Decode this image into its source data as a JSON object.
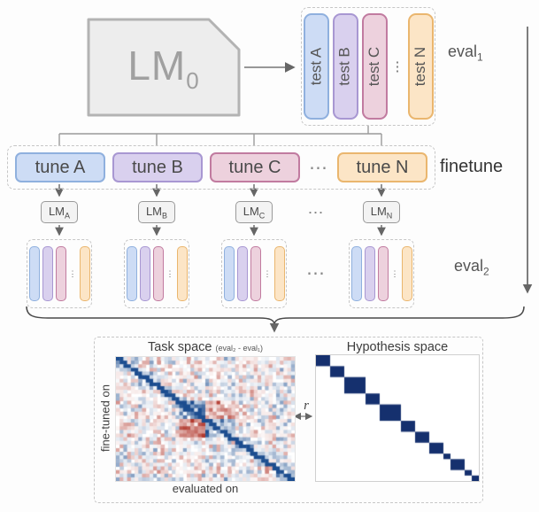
{
  "colors": {
    "blue_fill": "#cddcf5",
    "blue_border": "#8fb0de",
    "purple_fill": "#d9d0ee",
    "purple_border": "#a897d2",
    "pink_fill": "#edd1dd",
    "pink_border": "#c17ba0",
    "orange_fill": "#fce5c6",
    "orange_border": "#eab66e",
    "lm0_fill": "#ededed",
    "lm0_border": "#b3b3b3",
    "heatmap_pos": "#1c4d8f",
    "heatmap_neg": "#b23a2f",
    "hypothesis_block": "#15306e"
  },
  "lm0": {
    "text": "LM",
    "sub": "0"
  },
  "eval1": {
    "label": "eval",
    "sub": "1",
    "ellipsis": "⋮",
    "tests": [
      {
        "label": "test A",
        "color": "blue"
      },
      {
        "label": "test B",
        "color": "purple"
      },
      {
        "label": "test C",
        "color": "pink"
      },
      {
        "label": "test N",
        "color": "orange"
      }
    ]
  },
  "finetune": {
    "label": "finetune",
    "ellipsis": "⋯",
    "tunes": [
      {
        "label": "tune A",
        "color": "blue"
      },
      {
        "label": "tune B",
        "color": "purple"
      },
      {
        "label": "tune C",
        "color": "pink"
      },
      {
        "label": "tune N",
        "color": "orange"
      }
    ]
  },
  "models": {
    "ellipsis": "⋯",
    "items": [
      {
        "text": "LM",
        "sub": "A"
      },
      {
        "text": "LM",
        "sub": "B"
      },
      {
        "text": "LM",
        "sub": "C"
      },
      {
        "text": "LM",
        "sub": "N"
      }
    ]
  },
  "eval2": {
    "label": "eval",
    "sub": "2",
    "ellipsis": "⋯",
    "stack_ellipsis": "⋮"
  },
  "bottom": {
    "task_space": {
      "title": "Task space",
      "subtitle": "(eval₂ - eval₁)",
      "ylabel": "fine-tuned on",
      "xlabel": "evaluated on"
    },
    "correlation_label": "r",
    "hypothesis_space": {
      "title": "Hypothesis space"
    }
  },
  "heatmaps": {
    "task": {
      "rows": 34,
      "cols": 48,
      "seed": 11
    },
    "hypothesis": {
      "blocks": [
        2,
        2,
        3,
        2,
        3,
        2,
        2,
        2,
        1,
        2,
        1,
        1
      ]
    }
  }
}
